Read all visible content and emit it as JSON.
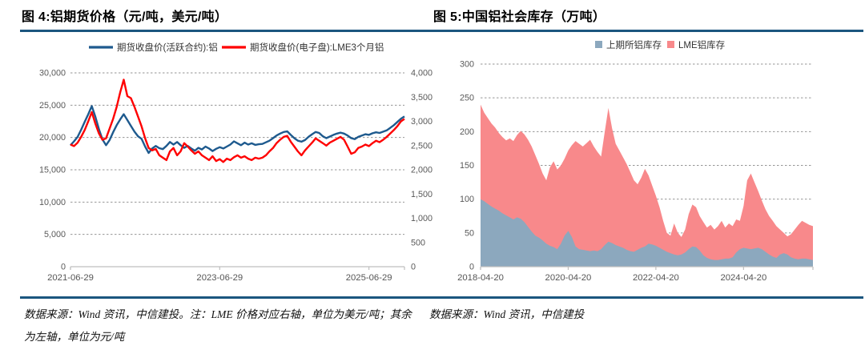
{
  "page": {
    "background": "#ffffff",
    "rule_color": "#1B567F",
    "grid_color": "#969696",
    "axis_line_color": "#BFBFBF",
    "axis_label_color": "#595959"
  },
  "chart_data": [
    {
      "type": "line",
      "title": "图 4:铝期货价格（元/吨，美元/吨）",
      "source_note": "数据来源：Wind 资讯，中信建投。注：LME 价格对应右轴，单位为美元/吨；其余为左轴，单位为元/吨",
      "legend_position": "top-center",
      "grid": "dashed-horizontal",
      "x_range": [
        "2021-06-29",
        "2025-11"
      ],
      "x_ticks": [
        "2021-06-29",
        "2023-06-29",
        "2025-06-29"
      ],
      "x_tick_indices": [
        0,
        42,
        84
      ],
      "left_axis": {
        "min": 0,
        "max": 30000,
        "step": 5000,
        "tick_values": [
          30000,
          25000,
          20000,
          15000,
          10000,
          5000,
          0
        ],
        "tick_labels": [
          "30,000",
          "25,000",
          "20,000",
          "15,000",
          "10,000",
          "5,000",
          "0"
        ]
      },
      "right_axis": {
        "min": 0,
        "max": 4000,
        "step": 500,
        "tick_values": [
          4000,
          3500,
          3000,
          2500,
          2000,
          1500,
          1000,
          500,
          0
        ],
        "tick_labels": [
          "4,000",
          "3,500",
          "3,000",
          "2,500",
          "2,000",
          "1,500",
          "1,000",
          "500",
          "0"
        ]
      },
      "series": [
        {
          "name": "期货收盘价(活跃合约):铝",
          "axis": "left",
          "color": "#1E5A8E",
          "values": [
            18800,
            19400,
            20100,
            21200,
            22400,
            23600,
            24850,
            23200,
            21300,
            19700,
            18800,
            19600,
            20800,
            21900,
            22800,
            23600,
            22700,
            21800,
            20900,
            20200,
            19800,
            18600,
            17600,
            18300,
            18700,
            18350,
            18200,
            18700,
            19300,
            18900,
            19300,
            18800,
            18400,
            18700,
            18300,
            17950,
            18400,
            18150,
            18600,
            18300,
            17900,
            18250,
            18500,
            18300,
            18600,
            18900,
            19400,
            19100,
            18800,
            19200,
            18900,
            19100,
            18850,
            18950,
            19000,
            19250,
            19500,
            19900,
            20300,
            20600,
            20850,
            20950,
            20400,
            19900,
            19500,
            19350,
            19600,
            20100,
            20500,
            20850,
            20700,
            20200,
            19900,
            20150,
            20400,
            20600,
            20750,
            20600,
            20300,
            19900,
            19750,
            20100,
            20300,
            20500,
            20400,
            20650,
            20800,
            20700,
            20900,
            21100,
            21500,
            21900,
            22400,
            22900,
            23250
          ]
        },
        {
          "name": "期货收盘价(电子盘):LME3个月铝",
          "axis": "right",
          "color": "#FF0000",
          "values": [
            2520,
            2490,
            2560,
            2680,
            2820,
            3000,
            3190,
            2950,
            2750,
            2620,
            2650,
            2850,
            3050,
            3300,
            3600,
            3860,
            3520,
            3480,
            3300,
            3100,
            2900,
            2650,
            2450,
            2400,
            2430,
            2300,
            2250,
            2200,
            2380,
            2450,
            2300,
            2380,
            2550,
            2480,
            2400,
            2330,
            2380,
            2300,
            2250,
            2200,
            2280,
            2180,
            2220,
            2160,
            2230,
            2200,
            2260,
            2300,
            2250,
            2280,
            2230,
            2200,
            2250,
            2230,
            2250,
            2300,
            2380,
            2450,
            2550,
            2620,
            2680,
            2700,
            2580,
            2480,
            2380,
            2300,
            2400,
            2480,
            2560,
            2650,
            2600,
            2550,
            2500,
            2560,
            2600,
            2640,
            2680,
            2620,
            2480,
            2330,
            2360,
            2450,
            2480,
            2520,
            2490,
            2550,
            2600,
            2570,
            2620,
            2680,
            2750,
            2820,
            2900,
            3000,
            3050
          ]
        }
      ]
    },
    {
      "type": "area",
      "stacked": true,
      "title": "图 5:中国铝社会库存（万吨）",
      "source_note": "数据来源：Wind 资讯，中信建投",
      "legend_position": "top-center",
      "grid": "dashed-horizontal",
      "x_range": [
        "2018-04-20",
        "2025-09"
      ],
      "x_ticks": [
        "2018-04-20",
        "2020-04-20",
        "2022-04-20",
        "2024-04-20"
      ],
      "x_tick_indices": [
        0,
        24,
        48,
        72
      ],
      "y_axis": {
        "min": 0,
        "max": 300,
        "step": 50,
        "tick_values": [
          300,
          250,
          200,
          150,
          100,
          50,
          0
        ],
        "tick_labels": [
          "300",
          "250",
          "200",
          "150",
          "100",
          "50",
          "0"
        ]
      },
      "series": [
        {
          "name": "上期所铝库存",
          "color": "#8CA8BE",
          "values": [
            100,
            97,
            93,
            89,
            86,
            83,
            79,
            76,
            73,
            70,
            73,
            71,
            66,
            59,
            52,
            46,
            43,
            39,
            34,
            31,
            29,
            26,
            34,
            46,
            53,
            44,
            30,
            26,
            25,
            24,
            23,
            24,
            23,
            26,
            32,
            37,
            35,
            32,
            30,
            28,
            25,
            23,
            22,
            25,
            28,
            30,
            34,
            33,
            31,
            28,
            25,
            22,
            20,
            18,
            17,
            18,
            21,
            26,
            30,
            29,
            24,
            17,
            13,
            11,
            10,
            10,
            11,
            12,
            12,
            14,
            21,
            26,
            28,
            27,
            26,
            27,
            28,
            26,
            22,
            18,
            15,
            13,
            18,
            20,
            18,
            14,
            12,
            11,
            12,
            12,
            11,
            10
          ]
        },
        {
          "name": "LME铝库存",
          "color": "#F8898B",
          "values": [
            140,
            131,
            127,
            123,
            120,
            115,
            113,
            111,
            117,
            116,
            122,
            130,
            130,
            129,
            126,
            119,
            109,
            99,
            94,
            116,
            127,
            118,
            116,
            114,
            119,
            136,
            156,
            156,
            153,
            159,
            165,
            154,
            147,
            137,
            168,
            198,
            170,
            150,
            142,
            134,
            127,
            117,
            106,
            97,
            104,
            115,
            101,
            87,
            74,
            60,
            43,
            28,
            26,
            46,
            33,
            26,
            34,
            52,
            62,
            59,
            51,
            49,
            45,
            51,
            45,
            50,
            57,
            46,
            52,
            46,
            49,
            42,
            62,
            101,
            112,
            98,
            84,
            72,
            63,
            57,
            53,
            47,
            37,
            30,
            27,
            34,
            43,
            51,
            56,
            53,
            51,
            50
          ]
        }
      ]
    }
  ]
}
